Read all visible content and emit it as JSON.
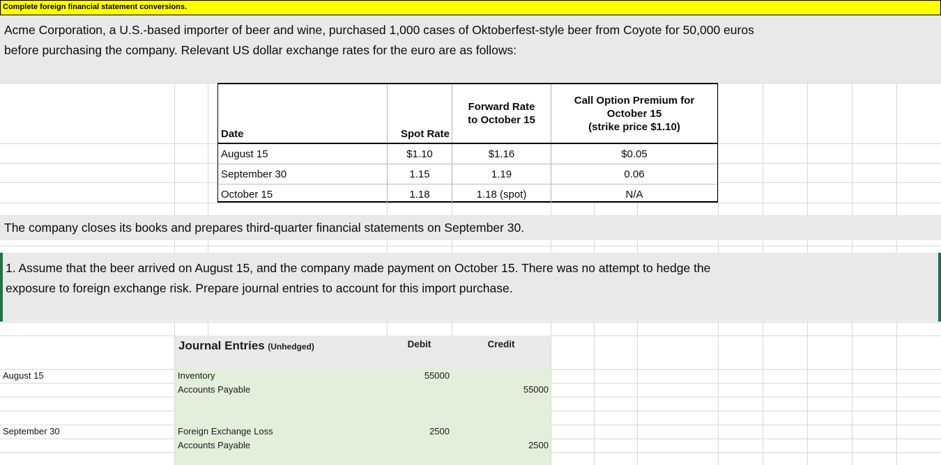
{
  "banner": {
    "text": "Complete foreign financial statement conversions."
  },
  "intro": {
    "line1": "Acme Corporation, a U.S.-based importer of beer and wine, purchased 1,000 cases of Oktoberfest-style beer from Coyote for 50,000 euros",
    "line2": "before purchasing the company. Relevant US dollar exchange rates for the euro are as follows:"
  },
  "rates_table": {
    "headers": {
      "date": "Date",
      "spot": "Spot Rate",
      "forward": [
        "Forward Rate",
        "to October 15"
      ],
      "call": [
        "Call Option Premium for",
        "October 15",
        "(strike price $1.10)"
      ]
    },
    "rows": [
      {
        "date": "August 15",
        "spot": "$1.10",
        "forward": "$1.16",
        "call": "$0.05"
      },
      {
        "date": "September 30",
        "spot": "1.15",
        "forward": "1.19",
        "call": "0.06"
      },
      {
        "date": "October 15",
        "spot": "1.18",
        "forward": "1.18 (spot)",
        "call": "N/A"
      }
    ]
  },
  "closing_note": "The company closes its books and prepares third-quarter financial statements on September 30.",
  "question": {
    "line1": "1. Assume that the beer arrived on August 15, and the company made payment on October 15. There was no attempt to hedge the",
    "line2": "exposure to foreign exchange risk. Prepare journal entries to account for this import purchase."
  },
  "journal": {
    "title": "Journal Entries",
    "subtitle": "(Unhedged)",
    "columns": {
      "debit": "Debit",
      "credit": "Credit"
    },
    "entry1": {
      "date": "August 15",
      "rows": [
        {
          "account": "Inventory",
          "debit": "55000",
          "credit": ""
        },
        {
          "account": "Accounts Payable",
          "debit": "",
          "credit": "55000"
        }
      ]
    },
    "entry2": {
      "date": "September 30",
      "rows": [
        {
          "account": "Foreign Exchange Loss",
          "debit": "2500",
          "credit": ""
        },
        {
          "account": "Accounts Payable",
          "debit": "",
          "credit": "2500"
        }
      ]
    }
  },
  "colors": {
    "banner_bg": "#ffff00",
    "band_bg": "#e9e9e9",
    "journal_green_bg": "#e2efda",
    "green_border": "#217346",
    "gridline": "#d8d8d8"
  }
}
